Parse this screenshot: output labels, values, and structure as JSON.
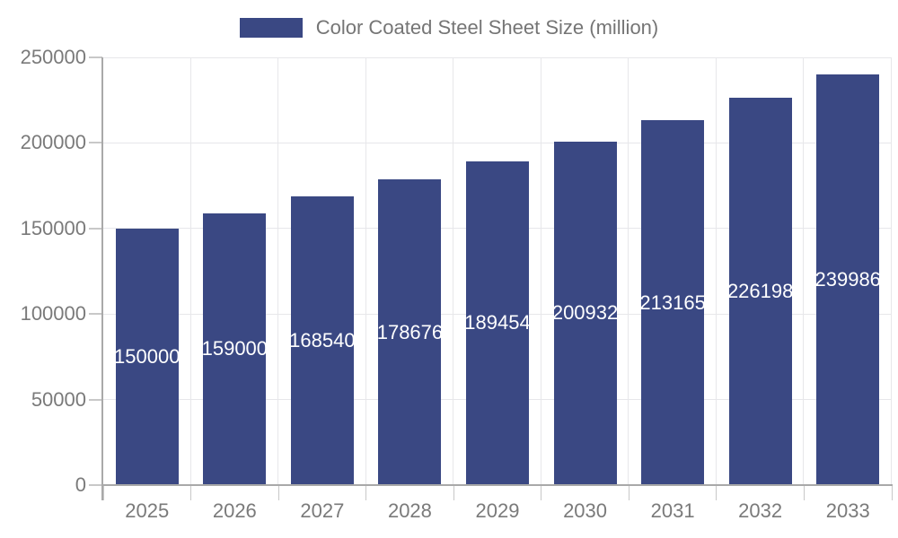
{
  "chart_data": {
    "type": "bar",
    "title": "",
    "legend": "Color Coated Steel Sheet Size (million)",
    "legend_position": "top-center",
    "categories": [
      "2025",
      "2026",
      "2027",
      "2028",
      "2029",
      "2030",
      "2031",
      "2032",
      "2033"
    ],
    "series": [
      {
        "name": "Color Coated Steel Sheet Size (million)",
        "values": [
          150000,
          159000,
          168540,
          178676,
          189454,
          200932,
          213165,
          226198,
          239986
        ],
        "bar_labels": [
          "150000",
          "159000",
          "168540",
          "178676",
          "189454",
          "200932",
          "213165",
          "226198",
          "239986"
        ]
      }
    ],
    "xlabel": "",
    "ylabel": "",
    "ylim": [
      0,
      250000
    ],
    "ytick_step": 50000,
    "ytick_labels": [
      "0",
      "50000",
      "100000",
      "150000",
      "200000",
      "250000"
    ],
    "grid": true,
    "colors": {
      "bar": "#3A4883",
      "bar_label": "#FFFFFF",
      "legend_text": "#757575",
      "axis_label": "#7A7A7A",
      "grid_line": "#E7E7EA",
      "tick": "#C8C8C8",
      "axis_line": "#A9A9A9",
      "background": "#FFFFFF"
    }
  }
}
